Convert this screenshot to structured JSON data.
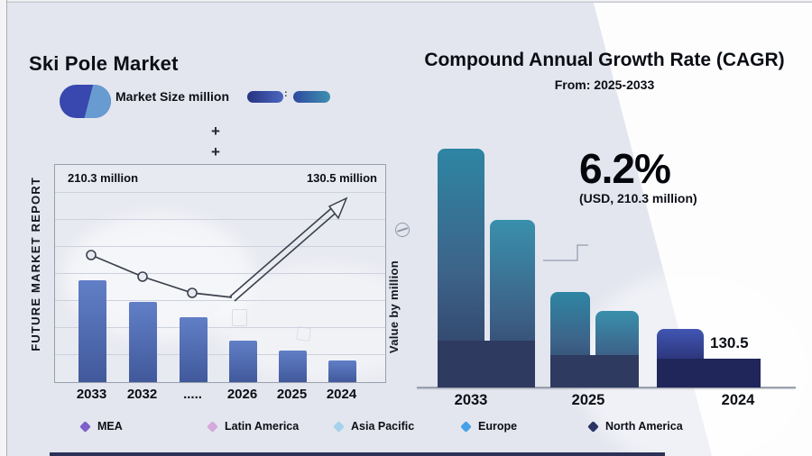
{
  "infographic": {
    "left": {
      "title": "Ski Pole Market",
      "series_label": "Market Size million",
      "ratio_separator": ":",
      "plus_marks": [
        "+",
        "+"
      ],
      "annotation_start": "210.3 million",
      "annotation_end": "130.5 million",
      "axis_label_left": "FUTURE MARKET REPORT",
      "axis_label_right": "Value by million"
    },
    "right": {
      "title": "Compound Annual Growth Rate (CAGR)",
      "subtitle": "From: 2025-2033",
      "cagr_value": "6.2%",
      "cagr_note": "(USD, 210.3 million)",
      "bar_value_label": "130.5"
    },
    "legend": {
      "items": [
        {
          "label": "MEA",
          "color": "#7d60c8"
        },
        {
          "label": "Latin America",
          "color": "#d5a9dc"
        },
        {
          "label": "Asia Pacific",
          "color": "#a7d2ee"
        },
        {
          "label": "Europe",
          "color": "#46a0e6"
        },
        {
          "label": "North America",
          "color": "#2a3565"
        }
      ]
    },
    "icons": [
      "capsule-icon",
      "ratio-pill-dark",
      "ratio-pill-teal",
      "plus-icon",
      "minus-circle-icon",
      "legend-diamond-icon",
      "trend-arrow-icon"
    ],
    "colors": {
      "background": "#e3e6ef",
      "panel_background": "#e8eaf1",
      "left_bar_top": "#617fc7",
      "left_bar_bottom": "#41599b",
      "cagr_bar_top": "#2e85a3",
      "cagr_bar_bottom": "#2e3a60",
      "cagr_2024_top": "#4156b3",
      "cagr_2024_bottom": "#202659",
      "bottom_strip": "#2c3157"
    }
  },
  "chart_data": [
    {
      "type": "bar",
      "title": "Ski Pole Market size by year",
      "unit": "USD million",
      "categories": [
        "2033",
        "2032",
        ".....",
        "2026",
        "2025",
        "2024"
      ],
      "values": [
        210.3,
        188.8,
        173.5,
        150.2,
        140.4,
        130.5
      ],
      "values_note": "only 210.3 million (2033) and 130.5 million (2024) are labeled on the chart; intermediate values estimated from bar heights",
      "annotations": [
        {
          "text": "210.3 million",
          "position": "top-left"
        },
        {
          "text": "130.5 million",
          "position": "top-right"
        }
      ],
      "ylabel": "Value by million",
      "overlay": "declining circle-marker line over 2033-2026 then rising double-line arrow toward top right",
      "grid": true,
      "legend_position": "none"
    },
    {
      "type": "bar",
      "title": "Compound Annual Growth Rate (CAGR)",
      "subtitle": "From: 2025-2033",
      "cagr": "6.2%",
      "note": "(USD, 210.3 million)",
      "categories": [
        "2033",
        "2025",
        "2024"
      ],
      "series": [
        {
          "name": "bar-left",
          "values": [
            100,
            40,
            24.5
          ]
        },
        {
          "name": "bar-right",
          "values": [
            70,
            32,
            12
          ]
        }
      ],
      "values_note": "relative bar heights (tallest = 100); only the 130.5 value is labeled, on the 2024 pair",
      "data_labels": [
        {
          "category": "2024",
          "text": "130.5"
        }
      ],
      "legend": [
        "MEA",
        "Latin America",
        "Asia Pacific",
        "Europe",
        "North America"
      ],
      "legend_position": "bottom"
    }
  ]
}
